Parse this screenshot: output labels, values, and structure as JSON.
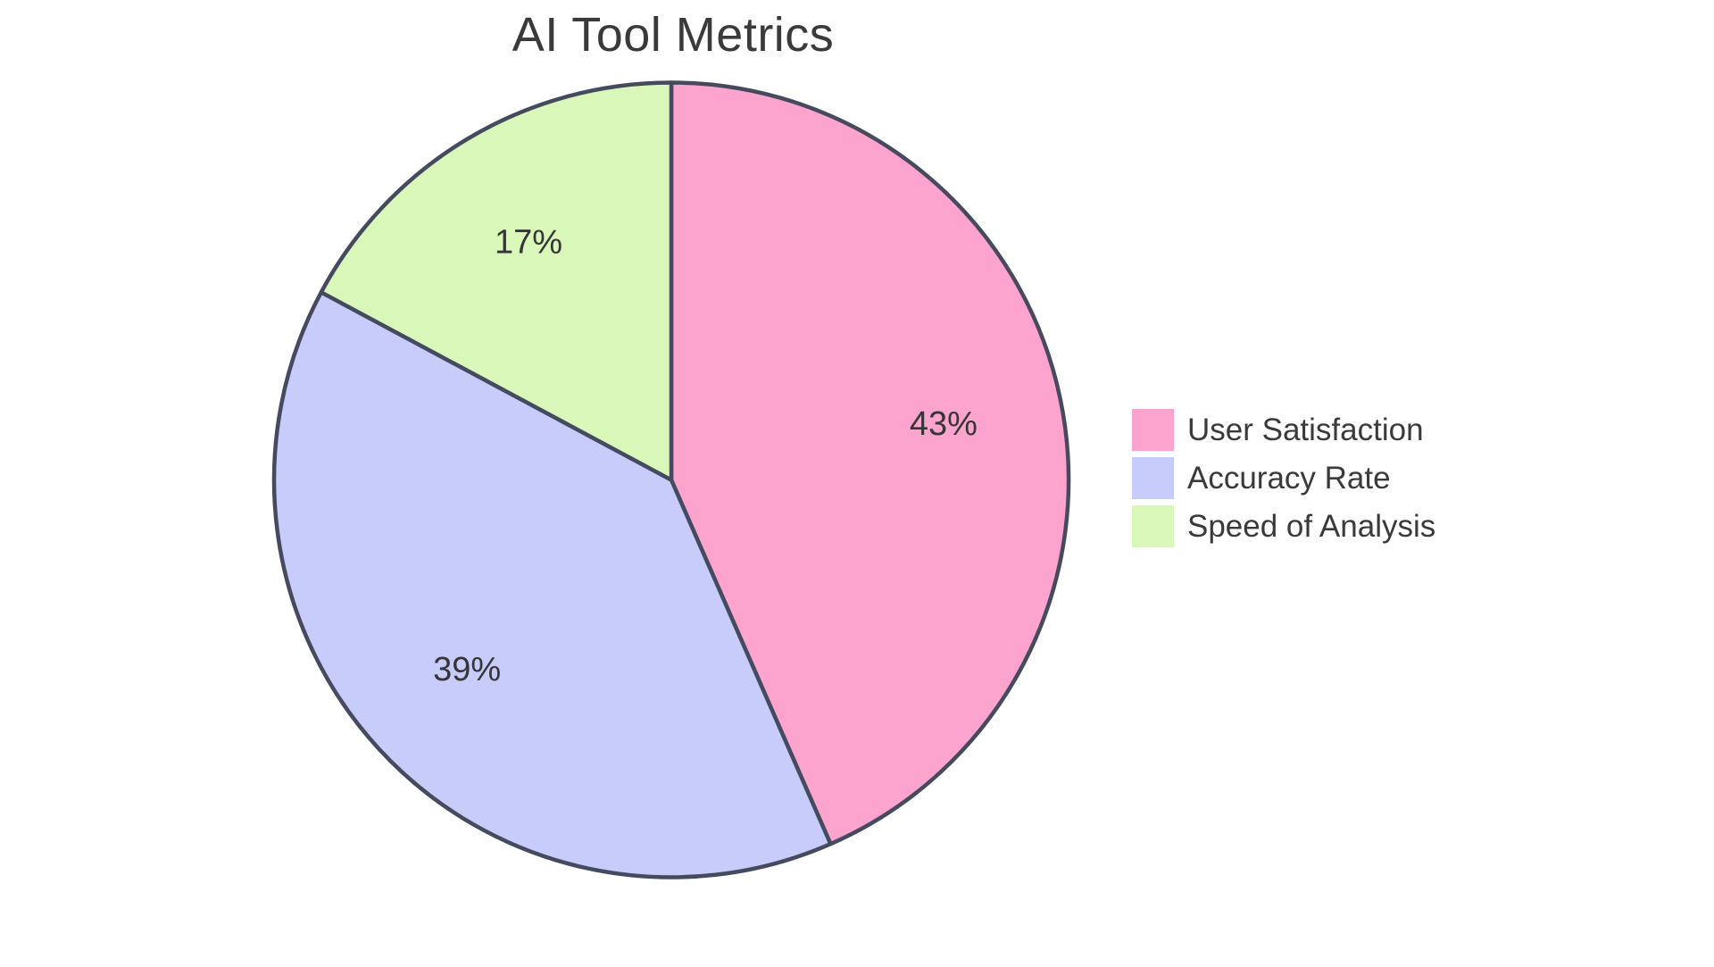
{
  "title": "AI Tool Metrics",
  "chart_data": {
    "type": "pie",
    "title": "AI Tool Metrics",
    "labels": [
      "User Satisfaction",
      "Accuracy Rate",
      "Speed of Analysis"
    ],
    "values": [
      43,
      39,
      17
    ],
    "value_labels": [
      "43%",
      "39%",
      "17%"
    ],
    "colors": [
      "#FCA3CE",
      "#C8CCFB",
      "#D9F7B9"
    ],
    "slice_stroke_color": "#464A5F",
    "slice_stroke_width": 4.5,
    "label_color": "#363636",
    "start_angle_deg": 0,
    "direction": "clockwise",
    "legend_position": "right",
    "background": "#FFFFFF"
  },
  "legend": {
    "items": [
      {
        "label": "User Satisfaction",
        "color": "#FCA3CE"
      },
      {
        "label": "Accuracy Rate",
        "color": "#C8CCFB"
      },
      {
        "label": "Speed of Analysis",
        "color": "#D9F7B9"
      }
    ]
  }
}
